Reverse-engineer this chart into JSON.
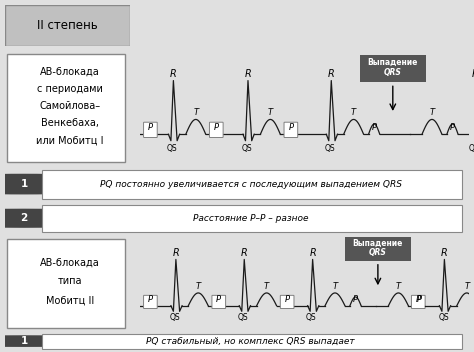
{
  "title": "II степень",
  "bg_color": "#e0e0e0",
  "panel_bg": "#ffffff",
  "ecg_color": "#1a1a1a",
  "dark_box_color": "#555555",
  "dark_box_text": "#ffffff",
  "top_label_lines": [
    "АВ-блокада",
    "с периодами",
    "Самойлова–",
    "Венкебаха,",
    "или Мобитц I"
  ],
  "bottom_label_lines": [
    "АВ-блокада",
    "типа",
    "Мобитц II"
  ],
  "note1_text": "PQ постоянно увеличивается с последующим выпадением QRS",
  "note2_text": "Расстояние P–P – разное",
  "note3_text": "PQ стабильный, но комплекс QRS выпадает",
  "drop_label_line1": "Выпадение",
  "drop_label_line2": "QRS",
  "header_text": "II степень",
  "circle_color": "#444444",
  "header_bg": "#c0c0c0",
  "border_color": "#888888"
}
